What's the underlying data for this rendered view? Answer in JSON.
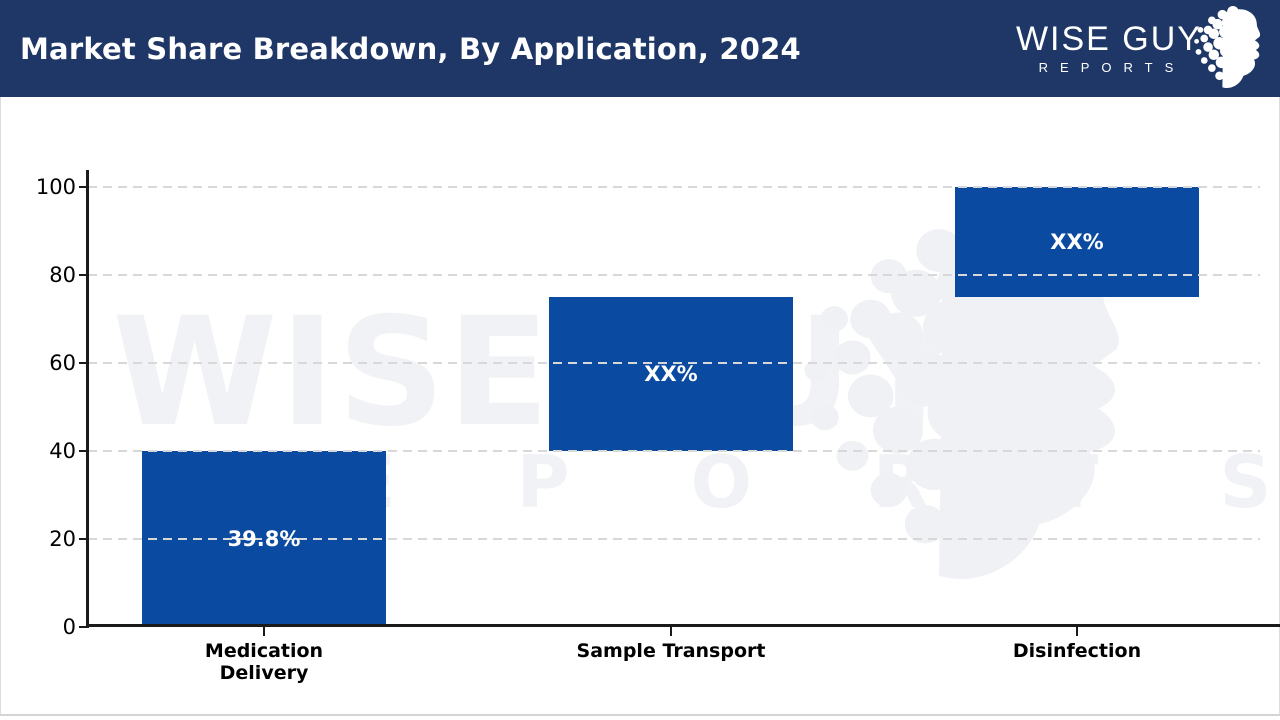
{
  "header": {
    "title": "Market Share Breakdown, By Application, 2024",
    "bg_color": "#1f3766",
    "logo": {
      "line1": "WISE GUY",
      "line2": "REPORTS"
    }
  },
  "watermark": {
    "line1": "WISE GUY",
    "line2": "REPORTS"
  },
  "chart_data": {
    "type": "bar",
    "variant": "floating-segment-waterfall",
    "title": "Market Share Breakdown, By Application, 2024",
    "categories": [
      "Medication Delivery",
      "Sample Transport",
      "Disinfection"
    ],
    "category_label_lines": [
      [
        "Medication",
        "Delivery"
      ],
      [
        "Sample Transport"
      ],
      [
        "Disinfection"
      ]
    ],
    "bars": [
      {
        "category": "Medication Delivery",
        "value_label": "39.8%",
        "segment_start": 0,
        "segment_end": 40
      },
      {
        "category": "Sample Transport",
        "value_label": "XX%",
        "segment_start": 40,
        "segment_end": 75
      },
      {
        "category": "Disinfection",
        "value_label": "XX%",
        "segment_start": 75,
        "segment_end": 100
      }
    ],
    "ylim": [
      0,
      100
    ],
    "yticks": [
      0,
      20,
      40,
      60,
      80,
      100
    ],
    "grid": {
      "axis": "y",
      "style": "dashed"
    },
    "bar_color": "#0b4aa1",
    "value_label_color": "#ffffff",
    "legend": "none"
  },
  "colors": {
    "header_bg": "#1f3766",
    "bar": "#0b4aa1",
    "axis": "#1a1a1a",
    "gridline": "#d8d8d8",
    "watermark": "#f1f2f5"
  }
}
